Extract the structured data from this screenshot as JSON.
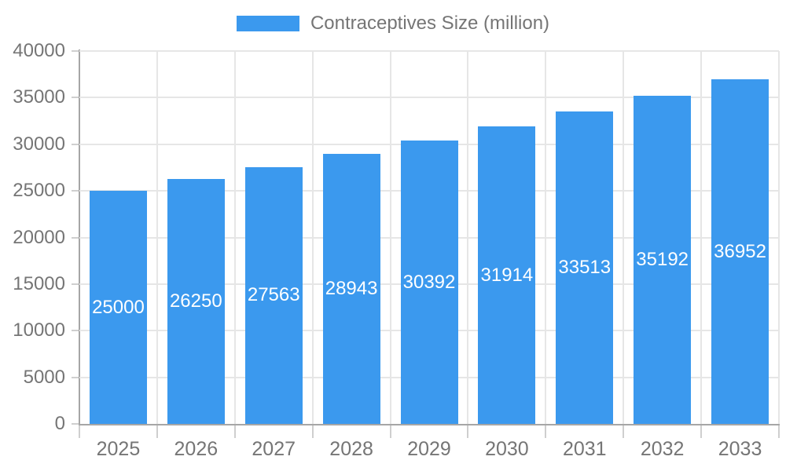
{
  "chart_data": {
    "type": "bar",
    "legend": "Contraceptives Size (million)",
    "legend_position": "top-center",
    "categories": [
      "2025",
      "2026",
      "2027",
      "2028",
      "2029",
      "2030",
      "2031",
      "2032",
      "2033"
    ],
    "values": [
      25000,
      26250,
      27563,
      28943,
      30392,
      31914,
      33513,
      35192,
      36952
    ],
    "bar_labels": [
      "25000",
      "26250",
      "27563",
      "28943",
      "30392",
      "31914",
      "33513",
      "35192",
      "36952"
    ],
    "y_tick_labels": [
      "0",
      "5000",
      "10000",
      "15000",
      "20000",
      "25000",
      "30000",
      "35000",
      "40000"
    ],
    "title": "",
    "xlabel": "",
    "ylabel": "",
    "ylim": [
      0,
      40000
    ],
    "ytick_step": 5000,
    "grid": true,
    "bar_labels_visible": true,
    "bar_label_valign": "center-of-bar"
  },
  "colors": {
    "bar": "#3B99EE",
    "grid": "#E6E6E6",
    "axis_line": "#A6A6A6",
    "tick": "#CFCFCF",
    "axis_text": "#757575",
    "legend_text": "#757575",
    "bar_label_text": "#FFFFFF",
    "background": "#FFFFFF"
  }
}
